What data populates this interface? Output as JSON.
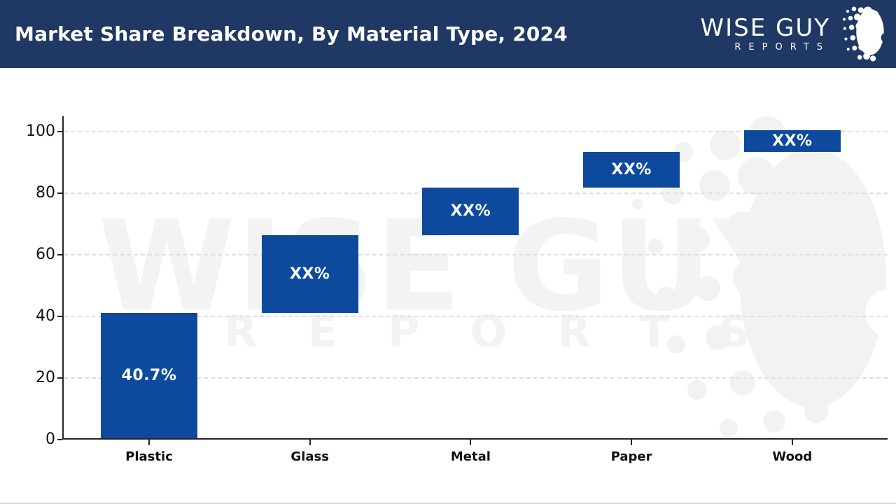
{
  "header": {
    "title": "Market Share Breakdown, By Material Type, 2024",
    "bg_color": "#1f3864",
    "logo": {
      "line1": "WISE GUY",
      "line2": "REPORTS"
    }
  },
  "watermark": {
    "line1": "WISE GUY",
    "line2": "REPORTS"
  },
  "chart_data": {
    "type": "bar",
    "subtype": "waterfall",
    "title": "Market Share Breakdown, By Material Type, 2024",
    "categories": [
      "Plastic",
      "Glass",
      "Metal",
      "Paper",
      "Wood"
    ],
    "segments": [
      {
        "category": "Plastic",
        "start": 0,
        "end": 40.7,
        "label": "40.7%"
      },
      {
        "category": "Glass",
        "start": 40.7,
        "end": 66,
        "label": "XX%"
      },
      {
        "category": "Metal",
        "start": 66,
        "end": 81.3,
        "label": "XX%"
      },
      {
        "category": "Paper",
        "start": 81.3,
        "end": 93,
        "label": "XX%"
      },
      {
        "category": "Wood",
        "start": 93,
        "end": 100,
        "label": "XX%"
      }
    ],
    "xlabel": "",
    "ylabel": "",
    "yticks": [
      0,
      20,
      40,
      60,
      80,
      100
    ],
    "ylim": [
      0,
      105
    ],
    "grid": "dashed-horizontal",
    "legend": "none",
    "bar_color": "#0d4a9d",
    "bar_label_color": "#ffffff",
    "axis_color": "#262626",
    "grid_color": "#dfdfdf",
    "total": 100
  }
}
